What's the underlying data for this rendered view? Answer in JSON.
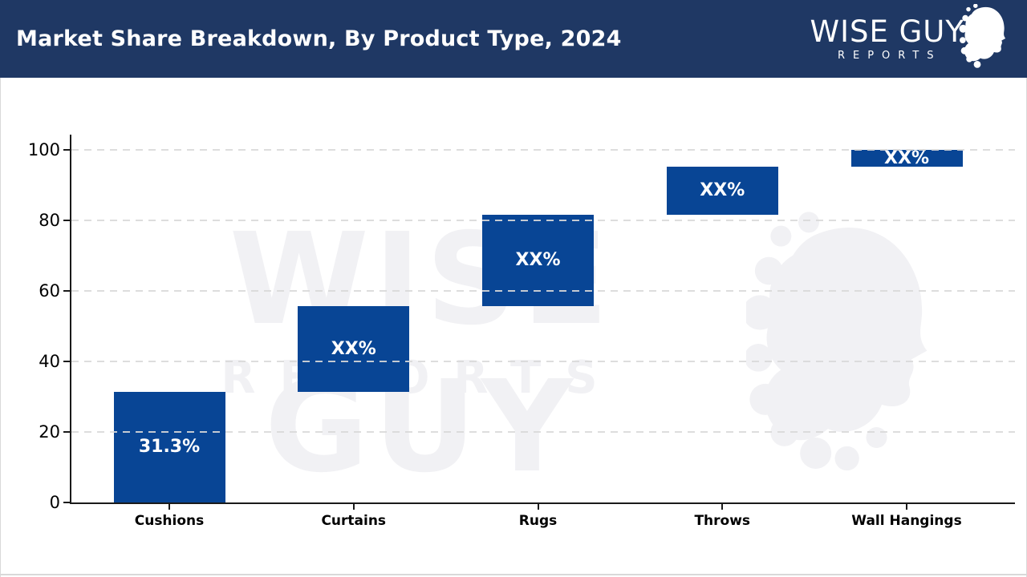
{
  "header": {
    "title": "Market Share Breakdown, By Product Type, 2024",
    "logo": {
      "line1": "WISE GUY",
      "line2": "REPORTS"
    }
  },
  "watermark": {
    "line1": "WISE GUY",
    "line2": "REPORTS"
  },
  "colors": {
    "header_bg": "#1f3864",
    "bar": "#084595",
    "grid": "#d9d9d9",
    "axis": "#1a1a1a",
    "bar_label": "#ffffff",
    "watermark": "#f1f1f4"
  },
  "chart_data": {
    "type": "bar",
    "subtype": "waterfall",
    "title": "Market Share Breakdown, By Product Type, 2024",
    "categories": [
      "Cushions",
      "Curtains",
      "Rugs",
      "Throws",
      "Wall Hangings"
    ],
    "segments": [
      {
        "category": "Cushions",
        "start": 0,
        "end": 31.3,
        "value": 31.3,
        "label": "31.3%"
      },
      {
        "category": "Curtains",
        "start": 31.3,
        "end": 55.6,
        "value": 24.3,
        "label": "XX%"
      },
      {
        "category": "Rugs",
        "start": 55.6,
        "end": 81.5,
        "value": 25.9,
        "label": "XX%"
      },
      {
        "category": "Throws",
        "start": 81.5,
        "end": 95.2,
        "value": 13.7,
        "label": "XX%"
      },
      {
        "category": "Wall Hangings",
        "start": 95.2,
        "end": 100,
        "value": 4.8,
        "label": "XX%"
      }
    ],
    "xlabel": "",
    "ylabel": "",
    "yticks": [
      0,
      20,
      40,
      60,
      80,
      100
    ],
    "ylim": [
      0,
      105
    ],
    "grid": "horizontal-dashed",
    "legend": "none"
  }
}
